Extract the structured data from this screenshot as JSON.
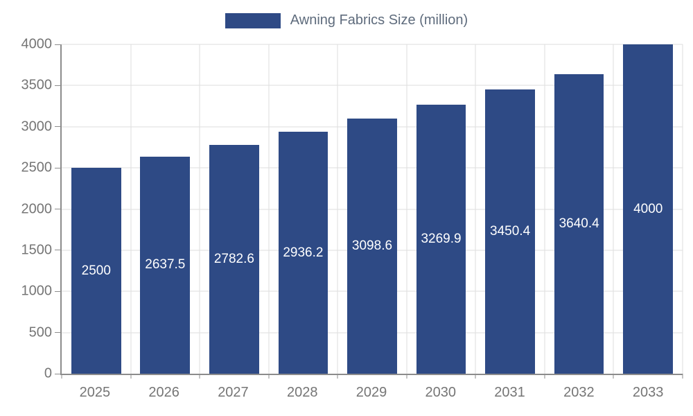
{
  "legend": {
    "label": "Awning Fabrics Size (million)"
  },
  "colors": {
    "bar": "#2e4a85",
    "grid": "#dddddd",
    "axis": "#8c8c8c",
    "tick_text": "#757575",
    "bar_label": "#ffffff",
    "legend_text": "#5e6b7c"
  },
  "chart_data": {
    "type": "bar",
    "title": "Awning Fabrics Size (million)",
    "categories": [
      "2025",
      "2026",
      "2027",
      "2028",
      "2029",
      "2030",
      "2031",
      "2032",
      "2033"
    ],
    "series": [
      {
        "name": "Awning Fabrics Size (million)",
        "values": [
          2500,
          2637.5,
          2782.6,
          2936.2,
          3098.6,
          3269.9,
          3450.4,
          3640.4,
          4000
        ]
      }
    ],
    "value_labels": [
      "2500",
      "2637.5",
      "2782.6",
      "2936.2",
      "3098.6",
      "3269.9",
      "3450.4",
      "3640.4",
      "4000"
    ],
    "xlabel": "",
    "ylabel": "",
    "ylim": [
      0,
      4000
    ],
    "ytick_step": 500,
    "ytick_labels": [
      "0",
      "500",
      "1000",
      "1500",
      "2000",
      "2500",
      "3000",
      "3500",
      "4000"
    ],
    "grid": true,
    "legend_position": "top",
    "bar_width_fraction": 0.72
  }
}
